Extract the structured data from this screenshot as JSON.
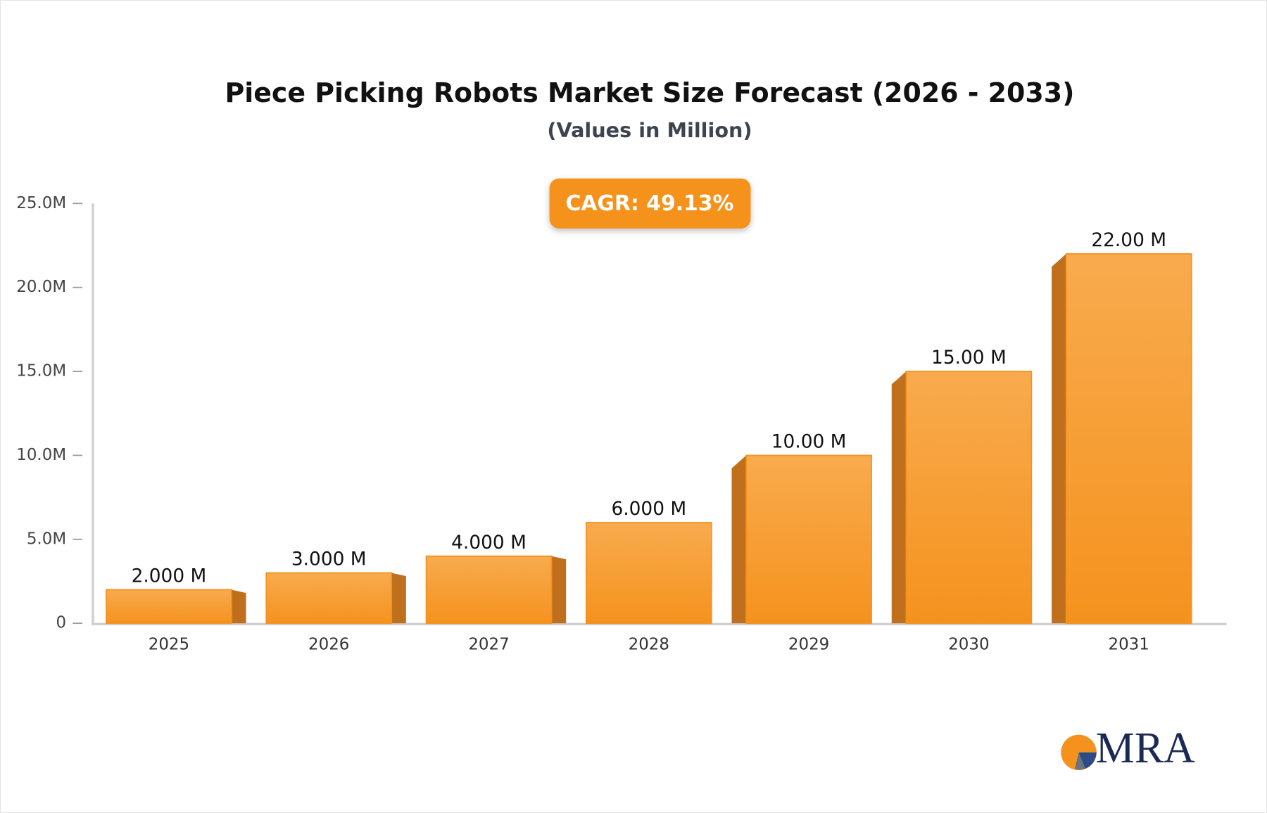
{
  "chart_data": {
    "type": "bar",
    "title": "Piece Picking Robots Market Size Forecast (2026 - 2033)",
    "subtitle": "(Values in Million)",
    "annotation": "CAGR: 49.13%",
    "categories": [
      "2025",
      "2026",
      "2027",
      "2028",
      "2029",
      "2030",
      "2031"
    ],
    "values": [
      2,
      3,
      4,
      6,
      10,
      15,
      22
    ],
    "value_labels": [
      "2.000 M",
      "3.000 M",
      "4.000 M",
      "6.000 M",
      "10.00 M",
      "15.00 M",
      "22.00 M"
    ],
    "color": "#f5921e",
    "ylim": [
      0,
      25
    ],
    "yticks": [
      0,
      {
        "value": 5,
        "label": "5.0M"
      },
      {
        "value": 10,
        "label": "10.0M"
      },
      {
        "value": 15,
        "label": "15.0M"
      },
      {
        "value": 20,
        "label": "20.0M"
      },
      {
        "value": 25,
        "label": "25.0M"
      }
    ],
    "grid": false
  },
  "logo": "MRA"
}
